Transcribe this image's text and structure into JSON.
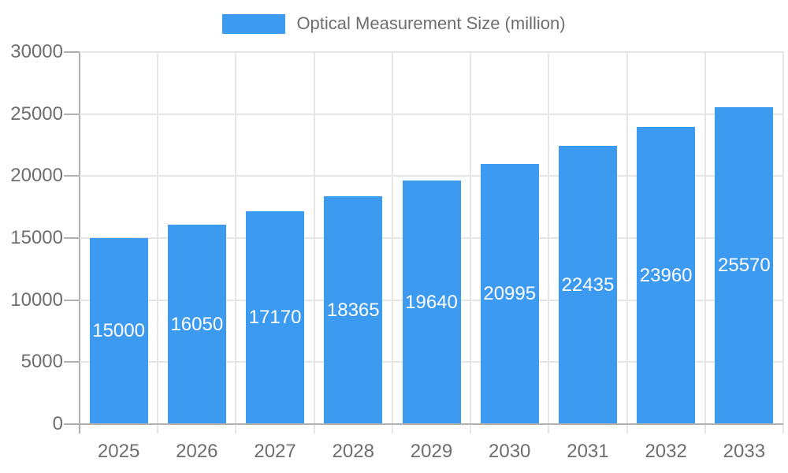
{
  "chart_data": {
    "type": "bar",
    "title": "Optical Measurement Size (million)",
    "categories": [
      "2025",
      "2026",
      "2027",
      "2028",
      "2029",
      "2030",
      "2031",
      "2032",
      "2033"
    ],
    "values": [
      15000,
      16050,
      17170,
      18365,
      19640,
      20995,
      22435,
      23960,
      25570
    ],
    "series_name": "Optical Measurement Size (million)",
    "xlabel": "",
    "ylabel": "",
    "ylim": [
      0,
      30000
    ],
    "ytick_step": 5000,
    "grid": true,
    "legend_position": "top",
    "value_labels": "inside-center"
  },
  "colors": {
    "bar": "#3d9af1",
    "grid": "#e6e6e6",
    "axis": "#b0b0b0",
    "text": "#6e6e6e",
    "bar_label": "#ffffff",
    "background": "#ffffff"
  }
}
